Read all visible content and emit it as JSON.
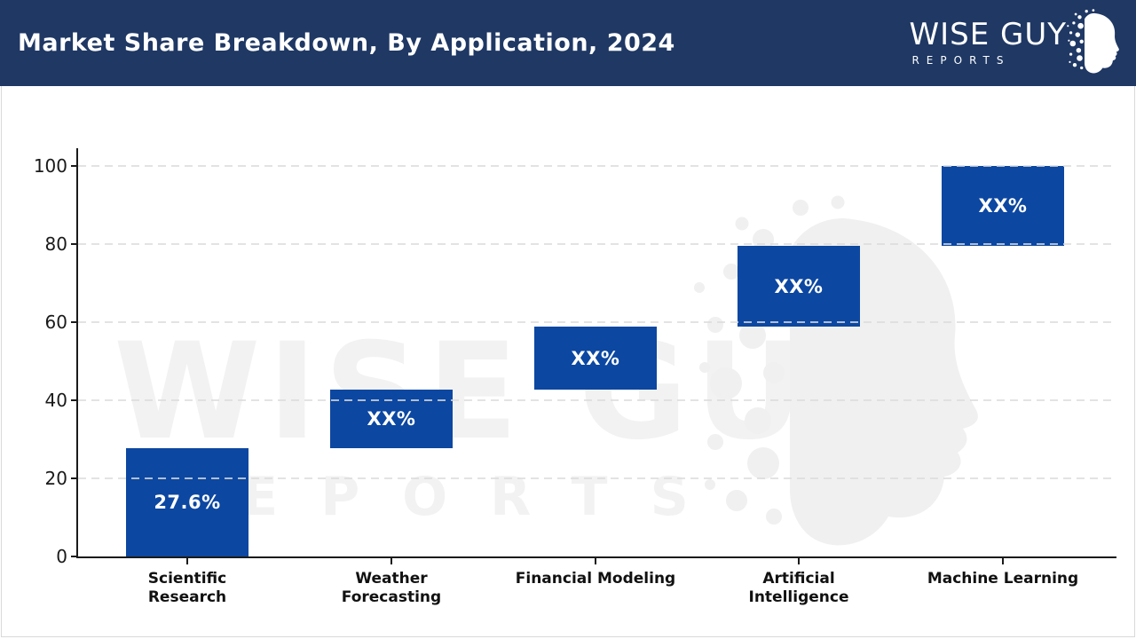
{
  "header": {
    "title": "Market Share Breakdown, By Application, 2024",
    "bg_color": "#1f3864",
    "logo": {
      "line1": "WISE GUY",
      "line2": "REPORTS"
    }
  },
  "watermark": {
    "line1": "WISE GUY",
    "line2": "REPORTS"
  },
  "chart_data": {
    "type": "bar",
    "subtype": "waterfall",
    "title": "Market Share Breakdown, By Application, 2024",
    "xlabel": "",
    "ylabel": "",
    "ylim": [
      0,
      100
    ],
    "yticks": [
      0,
      20,
      40,
      60,
      80,
      100
    ],
    "grid": "horizontal-dashed",
    "legend": "none",
    "bar_color": "#0c47a1",
    "bar_label_color": "#ffffff",
    "categories": [
      "Scientific\nResearch",
      "Weather\nForecasting",
      "Financial Modeling",
      "Artificial\nIntelligence",
      "Machine Learning"
    ],
    "segments": [
      {
        "category": "Scientific Research",
        "start": 0,
        "end": 27.6,
        "value": 27.6,
        "label": "27.6%"
      },
      {
        "category": "Weather Forecasting",
        "start": 27.6,
        "end": 42.6,
        "value": 15.0,
        "label": "XX%"
      },
      {
        "category": "Financial Modeling",
        "start": 42.6,
        "end": 58.7,
        "value": 16.1,
        "label": "XX%"
      },
      {
        "category": "Artificial Intelligence",
        "start": 58.7,
        "end": 79.4,
        "value": 20.7,
        "label": "XX%"
      },
      {
        "category": "Machine Learning",
        "start": 79.4,
        "end": 100,
        "value": 20.6,
        "label": "XX%"
      }
    ]
  }
}
